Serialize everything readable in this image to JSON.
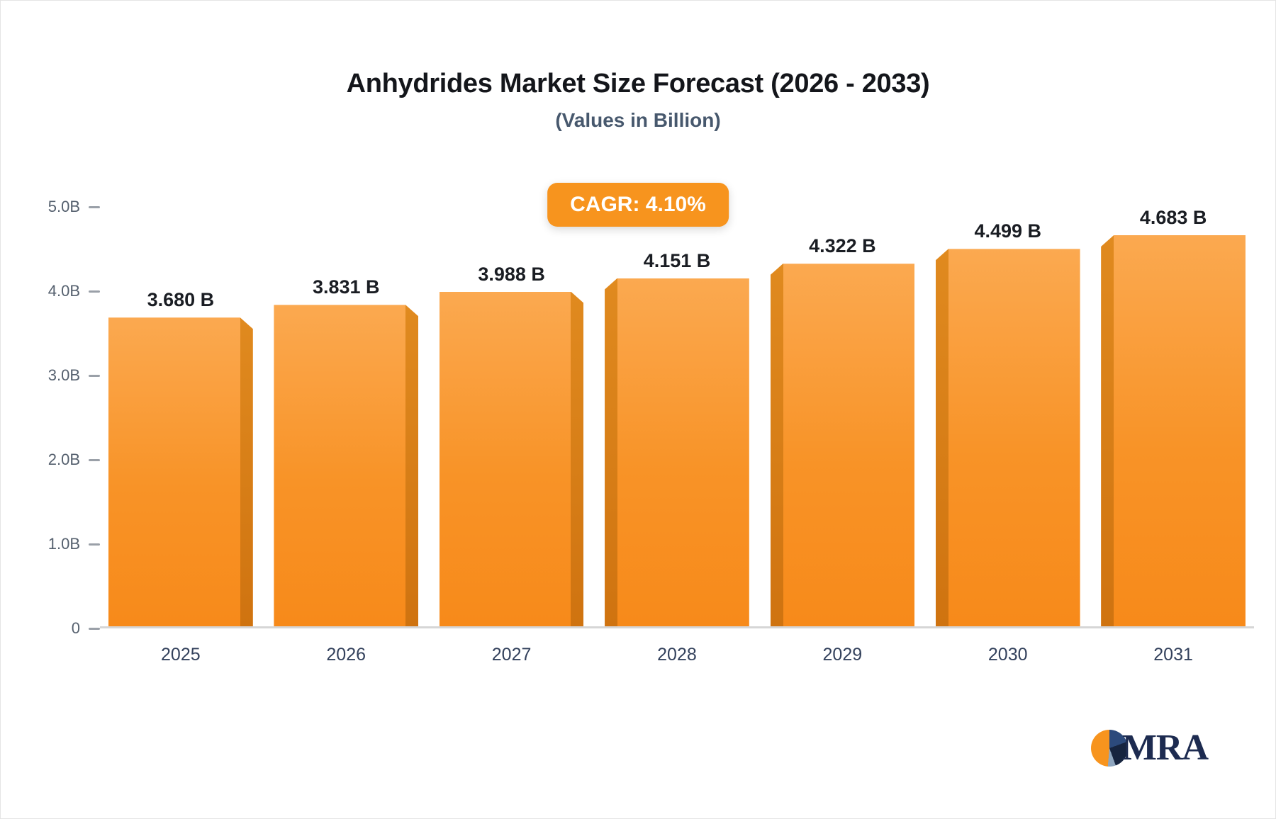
{
  "header": {
    "title": "Anhydrides Market Size Forecast (2026 - 2033)",
    "subtitle": "(Values in Billion)"
  },
  "badge": {
    "label": "CAGR: 4.10%"
  },
  "logo": {
    "text": "MRA"
  },
  "colors": {
    "accent_orange": "#f7941e",
    "bar_face_top": "#fba950",
    "bar_face_bottom": "#f78a1a",
    "bar_side": "#cf7310",
    "title_text": "#14161b",
    "subtitle_text": "#47586d",
    "axis_text": "#55606e",
    "x_label_text": "#33415c",
    "logo_navy": "#1d2b50"
  },
  "chart_data": {
    "type": "bar",
    "title": "Anhydrides Market Size Forecast (2026 - 2033)",
    "subtitle": "(Values in Billion)",
    "annotation": "CAGR: 4.10%",
    "categories": [
      "2025",
      "2026",
      "2027",
      "2028",
      "2029",
      "2030",
      "2031"
    ],
    "values": [
      3.68,
      3.831,
      3.988,
      4.151,
      4.322,
      4.499,
      4.683
    ],
    "value_labels": [
      "3.680 B",
      "3.831 B",
      "3.988 B",
      "4.151 B",
      "4.322 B",
      "4.499 B",
      "4.683 B"
    ],
    "xlabel": "",
    "ylabel": "",
    "ylim": [
      0,
      5.0
    ],
    "y_ticks": [
      {
        "label": "0",
        "value": 0
      },
      {
        "label": "1.0B",
        "value": 1
      },
      {
        "label": "2.0B",
        "value": 2
      },
      {
        "label": "3.0B",
        "value": 3
      },
      {
        "label": "4.0B",
        "value": 4
      },
      {
        "label": "5.0B",
        "value": 5
      }
    ],
    "grid": false,
    "legend": false
  }
}
